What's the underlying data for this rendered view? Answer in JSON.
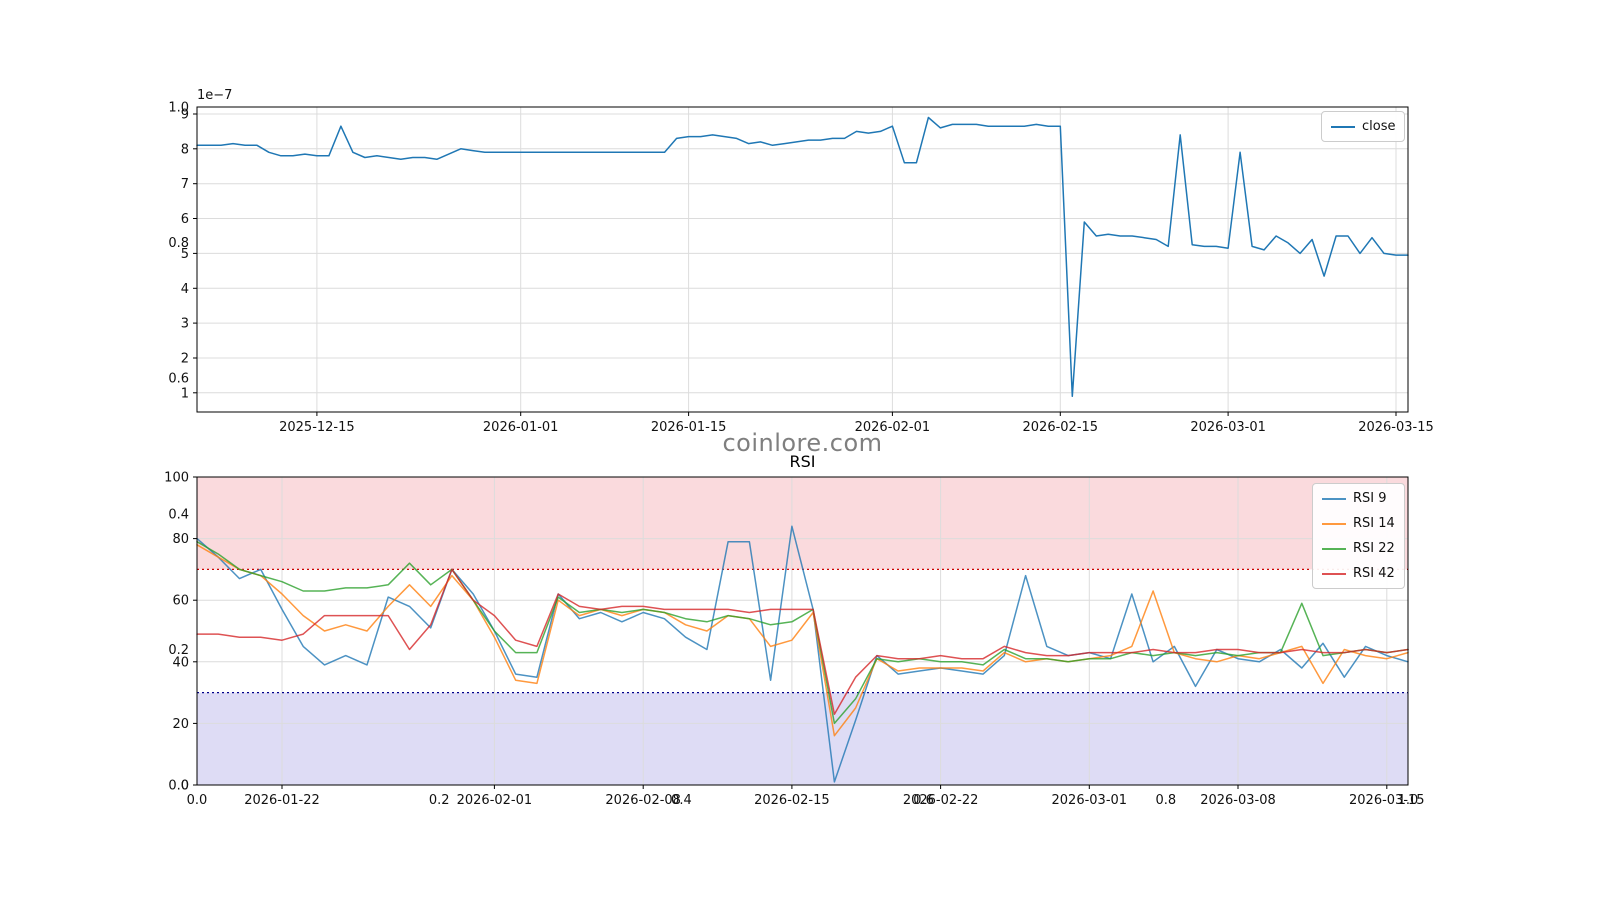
{
  "watermark": "coinlore.com",
  "overlay_axis": {
    "yticks": [
      "1.0",
      "0.8",
      "0.6",
      "0.4",
      "0.2",
      "0.0"
    ],
    "xticks": [
      "0.0",
      "0.2",
      "0.4",
      "0.6",
      "0.8",
      "1.0"
    ]
  },
  "chart_data": [
    {
      "type": "line",
      "title": "",
      "y_offset_text": "1e−7",
      "ylim": [
        0.45,
        9.2
      ],
      "yticks": [
        1,
        2,
        3,
        4,
        5,
        6,
        7,
        8,
        9
      ],
      "grid": true,
      "legend_position": "top-right",
      "x_start_date": "2025-12-05",
      "x_freq": "daily",
      "xticks": [
        {
          "label": "2025-12-15",
          "index": 10
        },
        {
          "label": "2026-01-01",
          "index": 27
        },
        {
          "label": "2026-01-15",
          "index": 41
        },
        {
          "label": "2026-02-01",
          "index": 58
        },
        {
          "label": "2026-02-15",
          "index": 72
        },
        {
          "label": "2026-03-01",
          "index": 86
        },
        {
          "label": "2026-03-15",
          "index": 100
        }
      ],
      "series": [
        {
          "name": "close",
          "color": "#1f77b4",
          "values": [
            8.1,
            8.1,
            8.1,
            8.15,
            8.1,
            8.1,
            7.9,
            7.8,
            7.8,
            7.85,
            7.8,
            7.8,
            8.65,
            7.9,
            7.75,
            7.8,
            7.75,
            7.7,
            7.75,
            7.75,
            7.7,
            7.85,
            8.0,
            7.95,
            7.9,
            7.9,
            7.9,
            7.9,
            7.9,
            7.9,
            7.9,
            7.9,
            7.9,
            7.9,
            7.9,
            7.9,
            7.9,
            7.9,
            7.9,
            7.9,
            8.3,
            8.35,
            8.35,
            8.4,
            8.35,
            8.3,
            8.15,
            8.2,
            8.1,
            8.15,
            8.2,
            8.25,
            8.25,
            8.3,
            8.3,
            8.5,
            8.45,
            8.5,
            8.65,
            7.6,
            7.6,
            8.9,
            8.6,
            8.7,
            8.7,
            8.7,
            8.65,
            8.65,
            8.65,
            8.65,
            8.7,
            8.65,
            8.65,
            0.9,
            5.9,
            5.5,
            5.55,
            5.5,
            5.5,
            5.45,
            5.4,
            5.2,
            8.4,
            5.25,
            5.2,
            5.2,
            5.15,
            7.9,
            5.2,
            5.1,
            5.5,
            5.3,
            5.0,
            5.4,
            4.35,
            5.5,
            5.5,
            5.0,
            5.45,
            5.0,
            4.95,
            4.95
          ]
        }
      ]
    },
    {
      "type": "line",
      "title": "RSI",
      "ylim": [
        0,
        100
      ],
      "yticks": [
        0,
        20,
        40,
        60,
        80,
        100
      ],
      "grid": true,
      "legend_position": "top-right",
      "overbought": 70,
      "oversold": 30,
      "overbought_color": "#fadadd",
      "oversold_color": "#dedcf5",
      "overbought_line_color": "#cc0000",
      "oversold_line_color": "#00008b",
      "x_start_date": "2026-01-18",
      "x_freq": "daily",
      "xticks": [
        {
          "label": "2026-01-22",
          "index": 4
        },
        {
          "label": "2026-02-01",
          "index": 14
        },
        {
          "label": "2026-02-08",
          "index": 21
        },
        {
          "label": "2026-02-15",
          "index": 28
        },
        {
          "label": "2026-02-22",
          "index": 35
        },
        {
          "label": "2026-03-01",
          "index": 42
        },
        {
          "label": "2026-03-08",
          "index": 49
        },
        {
          "label": "2026-03-15",
          "index": 56
        }
      ],
      "series": [
        {
          "name": "RSI 9",
          "color": "#1f77b4",
          "values": [
            80,
            74,
            67,
            70,
            57,
            45,
            39,
            42,
            39,
            61,
            58,
            51,
            70,
            62,
            50,
            36,
            35,
            62,
            54,
            56,
            53,
            56,
            54,
            48,
            44,
            79,
            79,
            34,
            84,
            57,
            1,
            21,
            42,
            36,
            37,
            38,
            37,
            36,
            42,
            68,
            45,
            42,
            43,
            41,
            62,
            40,
            45,
            32,
            44,
            41,
            40,
            44,
            38,
            46,
            35,
            45,
            42,
            40
          ]
        },
        {
          "name": "RSI 14",
          "color": "#ff7f0e",
          "values": [
            78,
            74,
            70,
            68,
            62,
            55,
            50,
            52,
            50,
            58,
            65,
            58,
            68,
            60,
            48,
            34,
            33,
            60,
            55,
            57,
            55,
            57,
            56,
            52,
            50,
            55,
            54,
            45,
            47,
            56,
            16,
            25,
            41,
            37,
            38,
            38,
            38,
            37,
            43,
            40,
            41,
            40,
            41,
            42,
            45,
            63,
            43,
            41,
            40,
            42,
            41,
            43,
            45,
            33,
            44,
            42,
            41,
            43
          ]
        },
        {
          "name": "RSI 22",
          "color": "#2ca02c",
          "values": [
            79,
            75,
            70,
            68,
            66,
            63,
            63,
            64,
            64,
            65,
            72,
            65,
            70,
            60,
            50,
            43,
            43,
            61,
            56,
            57,
            56,
            57,
            56,
            54,
            53,
            55,
            54,
            52,
            53,
            57,
            20,
            28,
            41,
            40,
            41,
            40,
            40,
            39,
            44,
            41,
            41,
            40,
            41,
            41,
            43,
            42,
            43,
            42,
            43,
            42,
            43,
            43,
            59,
            42,
            43,
            44,
            43,
            44
          ]
        },
        {
          "name": "RSI 42",
          "color": "#d62728",
          "values": [
            49,
            49,
            48,
            48,
            47,
            49,
            55,
            55,
            55,
            55,
            44,
            52,
            70,
            60,
            55,
            47,
            45,
            62,
            58,
            57,
            58,
            58,
            57,
            57,
            57,
            57,
            56,
            57,
            57,
            57,
            23,
            35,
            42,
            41,
            41,
            42,
            41,
            41,
            45,
            43,
            42,
            42,
            43,
            43,
            43,
            44,
            43,
            43,
            44,
            44,
            43,
            43,
            44,
            43,
            43,
            44,
            43,
            44
          ]
        }
      ]
    }
  ]
}
